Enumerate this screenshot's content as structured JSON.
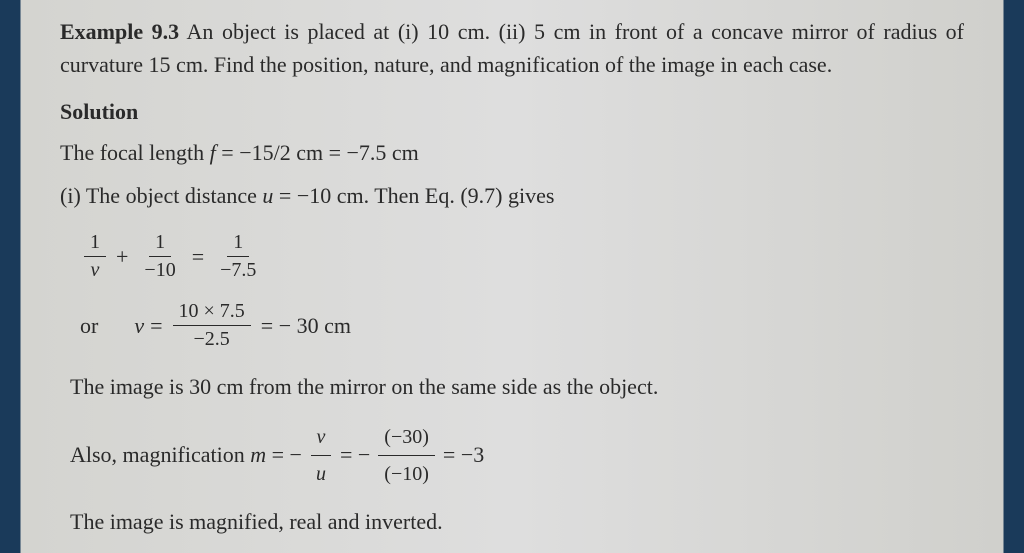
{
  "example": {
    "label": "Example 9.3",
    "problem": "An object is placed at (i) 10 cm. (ii) 5 cm in front of a concave mirror of radius of curvature 15 cm. Find the position, nature, and magnification of the image in each case."
  },
  "solution": {
    "heading": "Solution",
    "focal_length": "The focal length f = −15/2 cm = −7.5 cm",
    "part_i": "(i) The object distance u = −10 cm. Then Eq. (9.7) gives",
    "eq1": {
      "frac1_num": "1",
      "frac1_den": "v",
      "plus": "+",
      "frac2_num": "1",
      "frac2_den": "−10",
      "equals": "=",
      "frac3_num": "1",
      "frac3_den": "−7.5"
    },
    "eq2": {
      "or": "or",
      "v_equals": "v =",
      "frac_num": "10 × 7.5",
      "frac_den": "−2.5",
      "result": "= − 30 cm"
    },
    "image_position": "The image is 30 cm from the mirror on the same side as the object.",
    "magnification": {
      "prefix": "Also, magnification m = −",
      "frac1_num": "v",
      "frac1_den": "u",
      "mid": "= −",
      "frac2_num": "(−30)",
      "frac2_den": "(−10)",
      "result": "= −3"
    },
    "conclusion": "The image is magnified, real and inverted."
  },
  "style": {
    "background_color": "#d8d8d4",
    "text_color": "#2a2a2a",
    "font_family": "Georgia, serif",
    "body_fontsize": 22,
    "heading_fontsize": 22,
    "edge_color": "#1a3a5a"
  }
}
